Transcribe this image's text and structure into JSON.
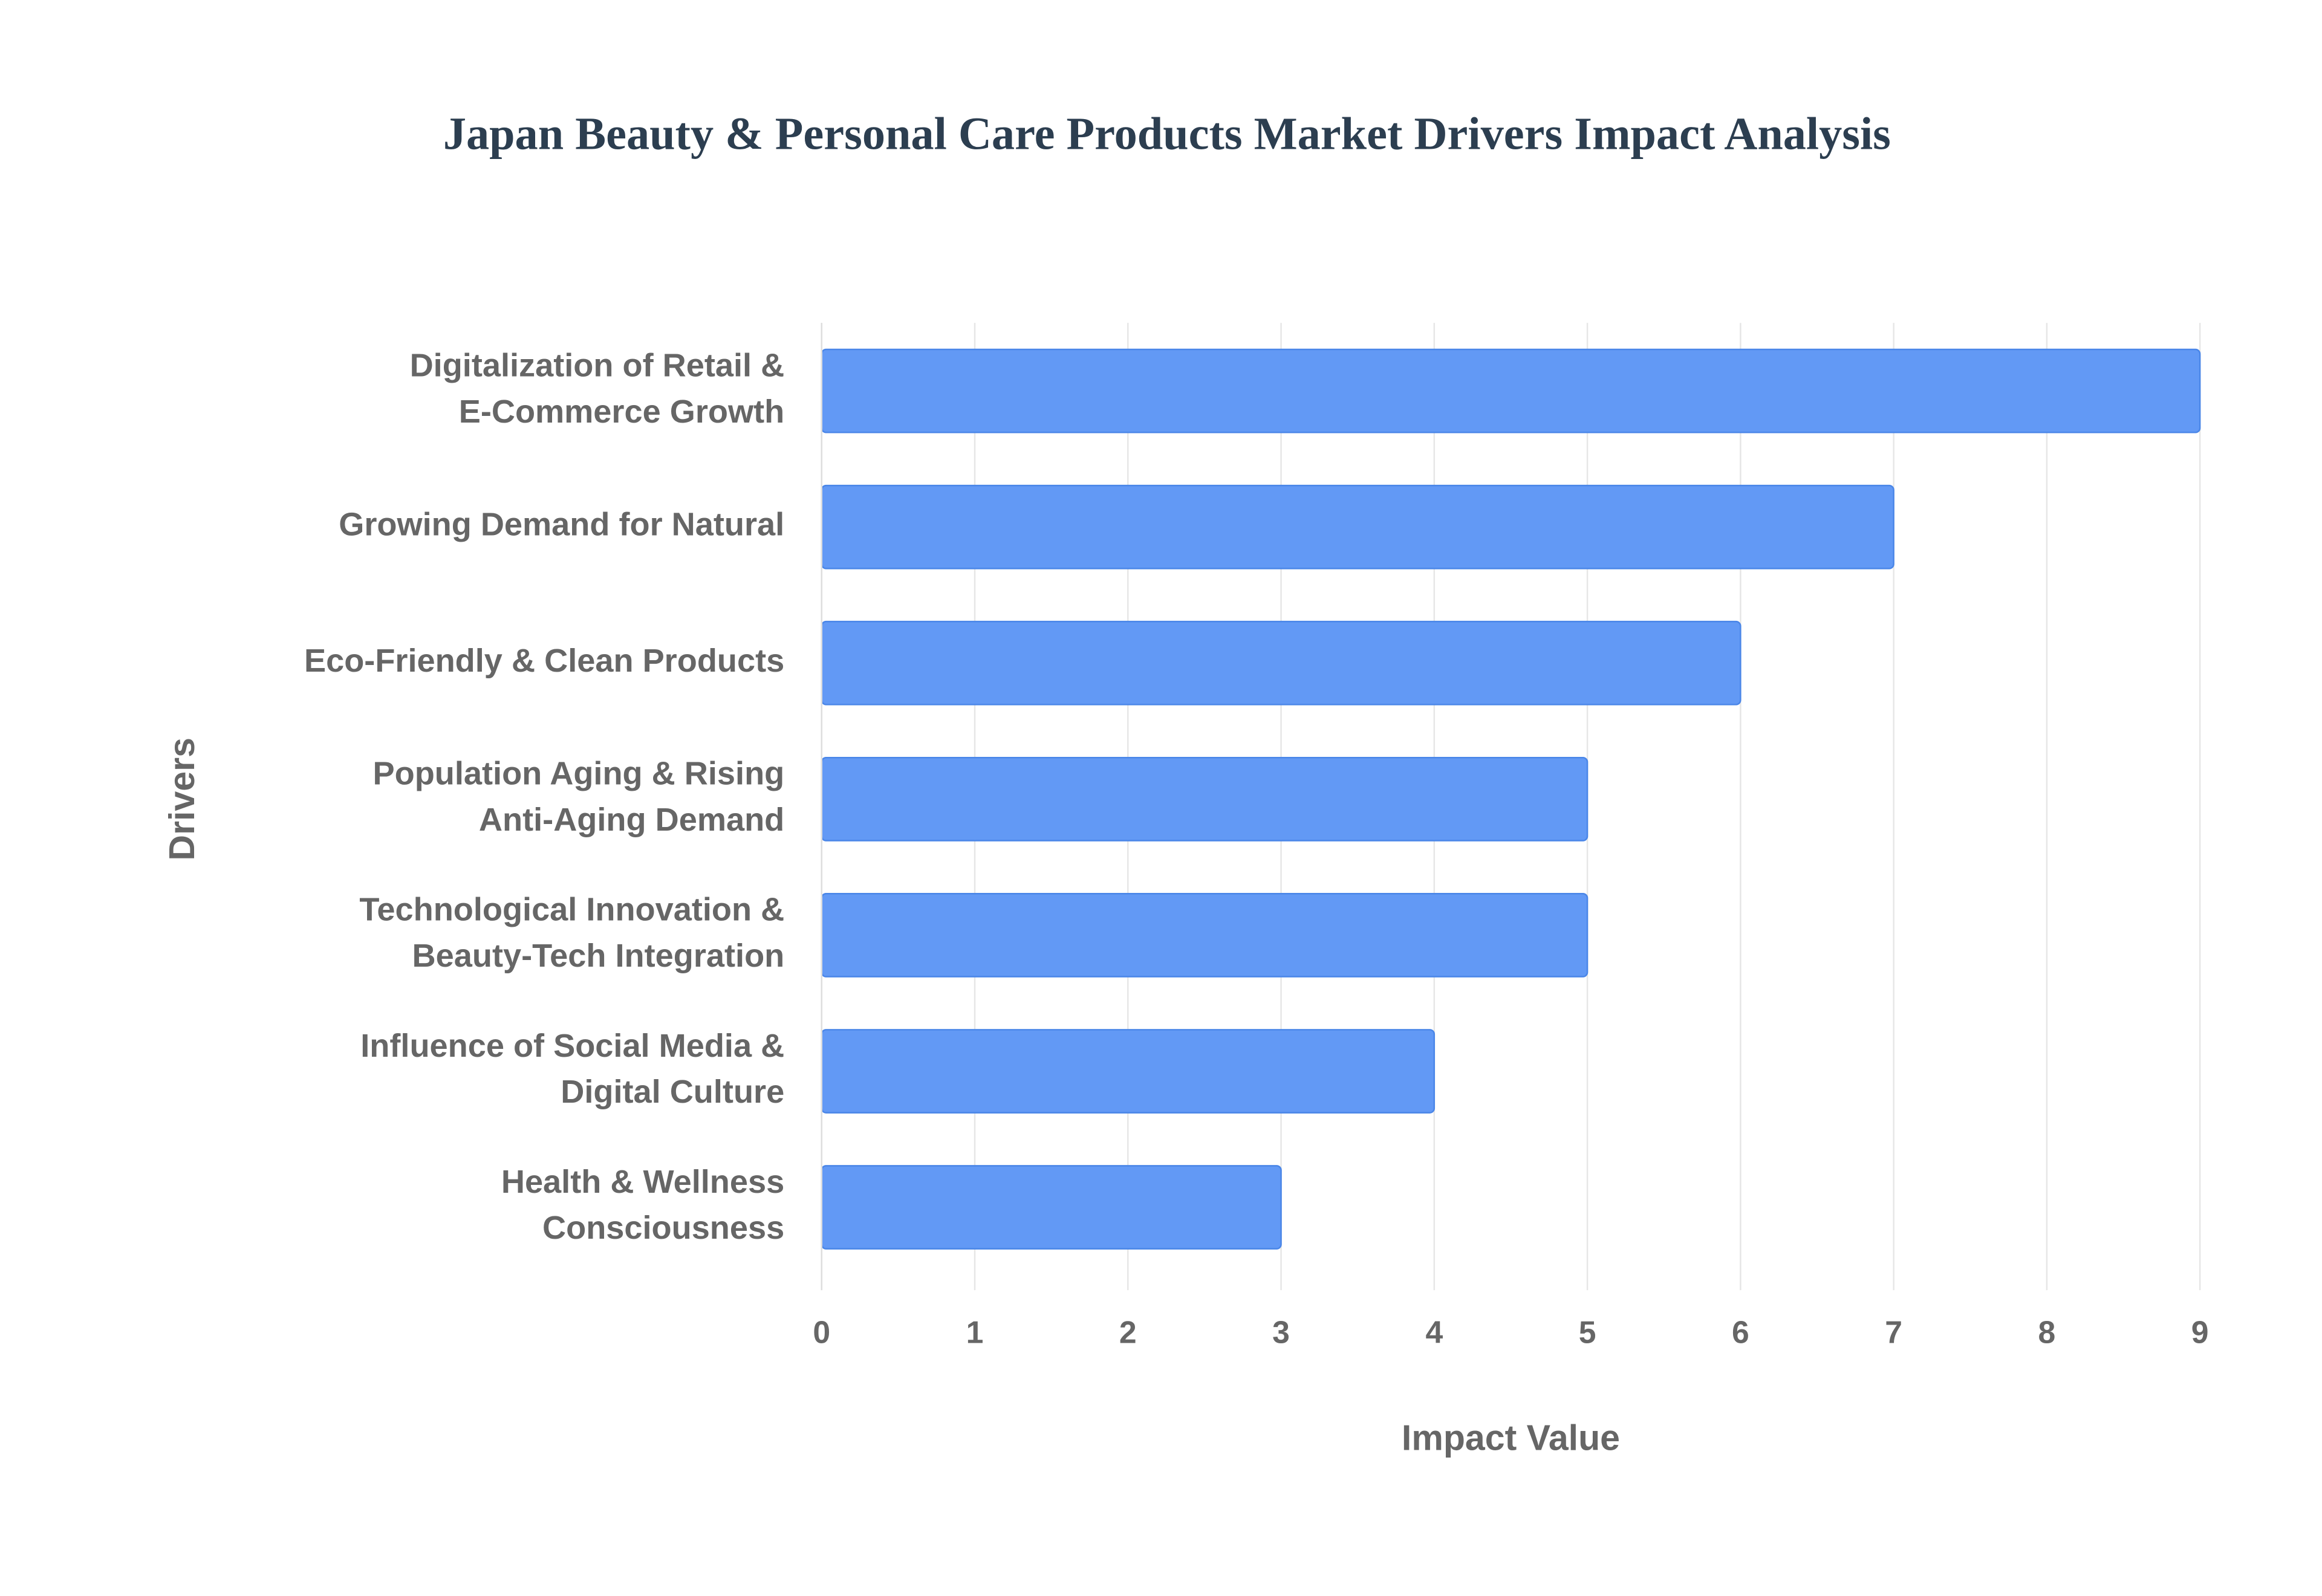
{
  "chart_data": {
    "type": "bar",
    "orientation": "horizontal",
    "title": "Japan Beauty & Personal Care Products Market Drivers Impact Analysis",
    "x_label": "Impact Value",
    "y_label": "Drivers",
    "categories": [
      [
        "Digitalization of Retail &",
        "E-Commerce Growth"
      ],
      [
        "Growing Demand for Natural"
      ],
      [
        "Eco-Friendly & Clean Products"
      ],
      [
        "Population Aging & Rising",
        "Anti-Aging Demand"
      ],
      [
        "Technological Innovation &",
        "Beauty-Tech Integration"
      ],
      [
        "Influence of Social Media &",
        "Digital Culture"
      ],
      [
        "Health & Wellness",
        "Consciousness"
      ]
    ],
    "values": [
      9,
      7,
      6,
      5,
      5,
      4,
      3
    ],
    "color": "#6299f5",
    "border_color": "#4a86e8",
    "xlim": [
      0,
      9
    ],
    "xticks": [
      0,
      1,
      2,
      3,
      4,
      5,
      6,
      7,
      8,
      9
    ],
    "grid": true
  }
}
